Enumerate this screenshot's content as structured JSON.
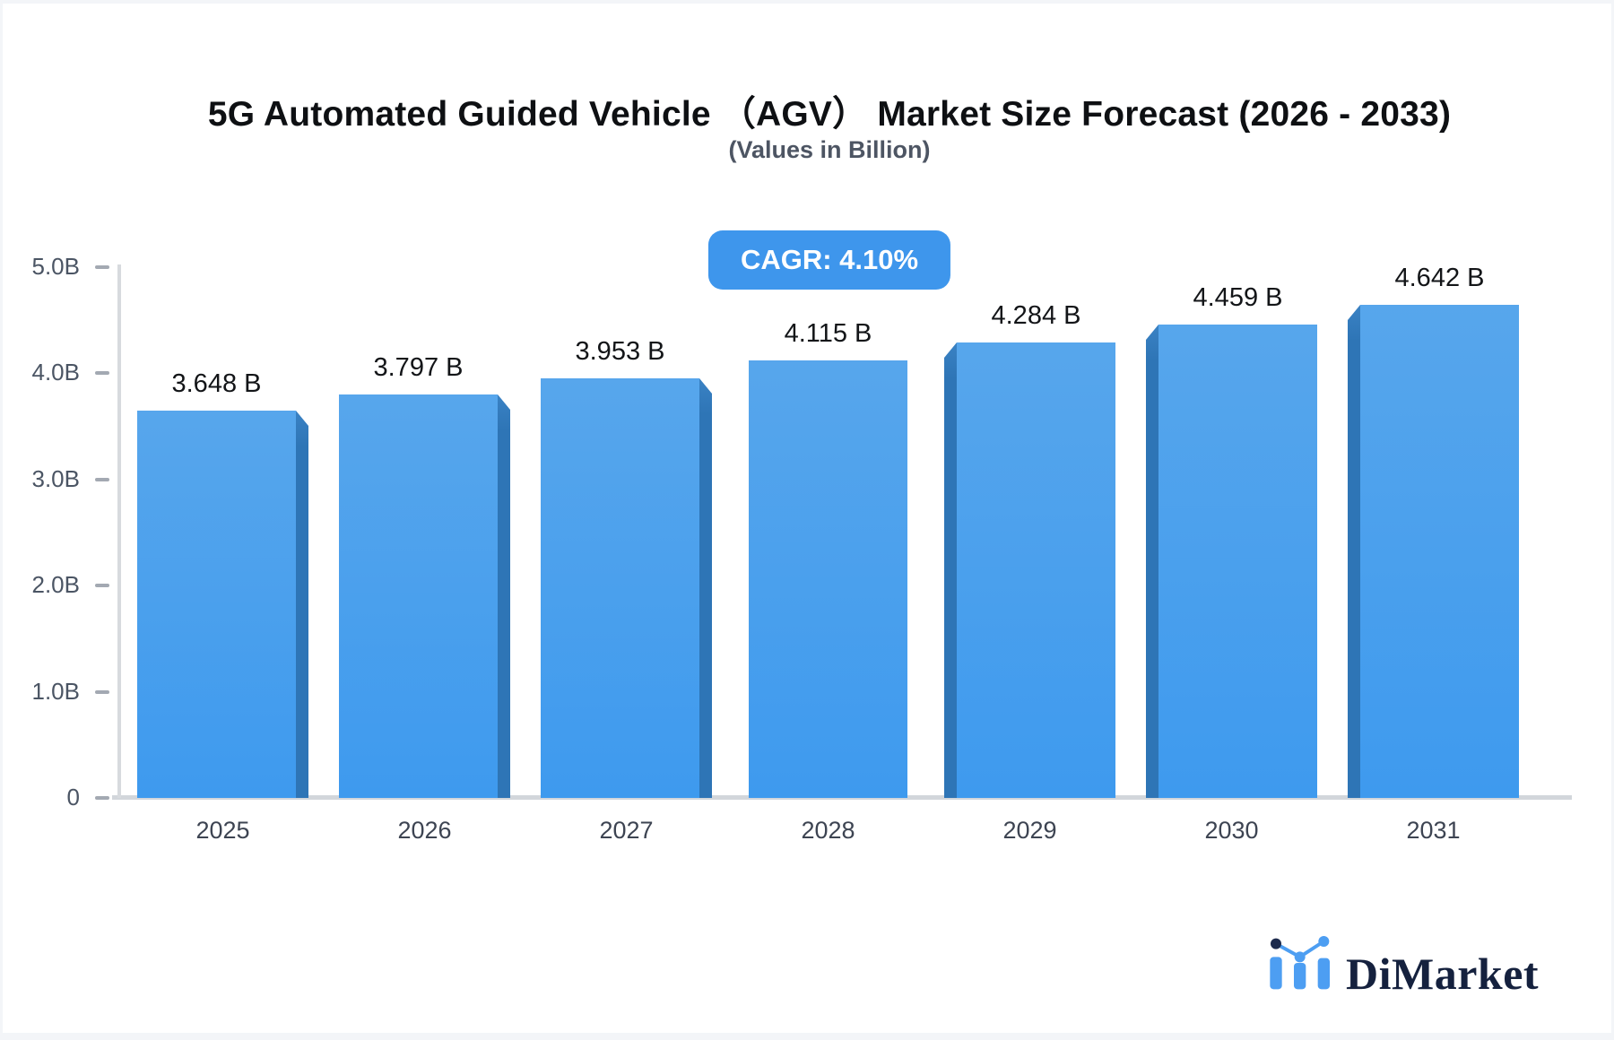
{
  "header": {
    "title": "5G Automated Guided Vehicle （AGV） Market Size Forecast (2026 - 2033)",
    "subtitle": "(Values in Billion)"
  },
  "badge": {
    "label": "CAGR: 4.10%",
    "bg_color": "#3e96ec",
    "text_color": "#ffffff"
  },
  "chart_data": {
    "type": "bar",
    "title": "5G Automated Guided Vehicle （AGV） Market Size Forecast (2026 - 2033)",
    "subtitle": "(Values in Billion)",
    "cagr_annotation": "CAGR: 4.10%",
    "categories": [
      "2025",
      "2026",
      "2027",
      "2028",
      "2029",
      "2030",
      "2031"
    ],
    "values": [
      3.648,
      3.797,
      3.953,
      4.115,
      4.284,
      4.459,
      4.642
    ],
    "value_labels": [
      "3.648 B",
      "3.797 B",
      "3.953 B",
      "4.115 B",
      "4.284 B",
      "4.459 B",
      "4.642 B"
    ],
    "unit": "Billion",
    "xlabel": "",
    "ylabel": "",
    "ylim": [
      0,
      5.0
    ],
    "y_tick_labels": [
      "5.0B",
      "4.0B",
      "3.0B",
      "2.0B",
      "1.0B",
      "0"
    ],
    "y_tick_values": [
      5,
      4,
      3,
      2,
      1,
      0
    ],
    "grid": false,
    "legend": false,
    "bar_style": "3d-extruded",
    "bar_face_top_color": "#57a6ec",
    "bar_face_bottom_color": "#3e9aee",
    "bar_side_color": "#2e75b6",
    "bar_side_bevel_color": "#3a82c4",
    "axis_line_color": "#d7dade",
    "tick_color": "#a3a9b2"
  },
  "logo": {
    "text": "DiMarket",
    "icon": "bar-line-chart-icon",
    "icon_blue": "#4d9ef2",
    "icon_navy": "#1d2b4d"
  }
}
